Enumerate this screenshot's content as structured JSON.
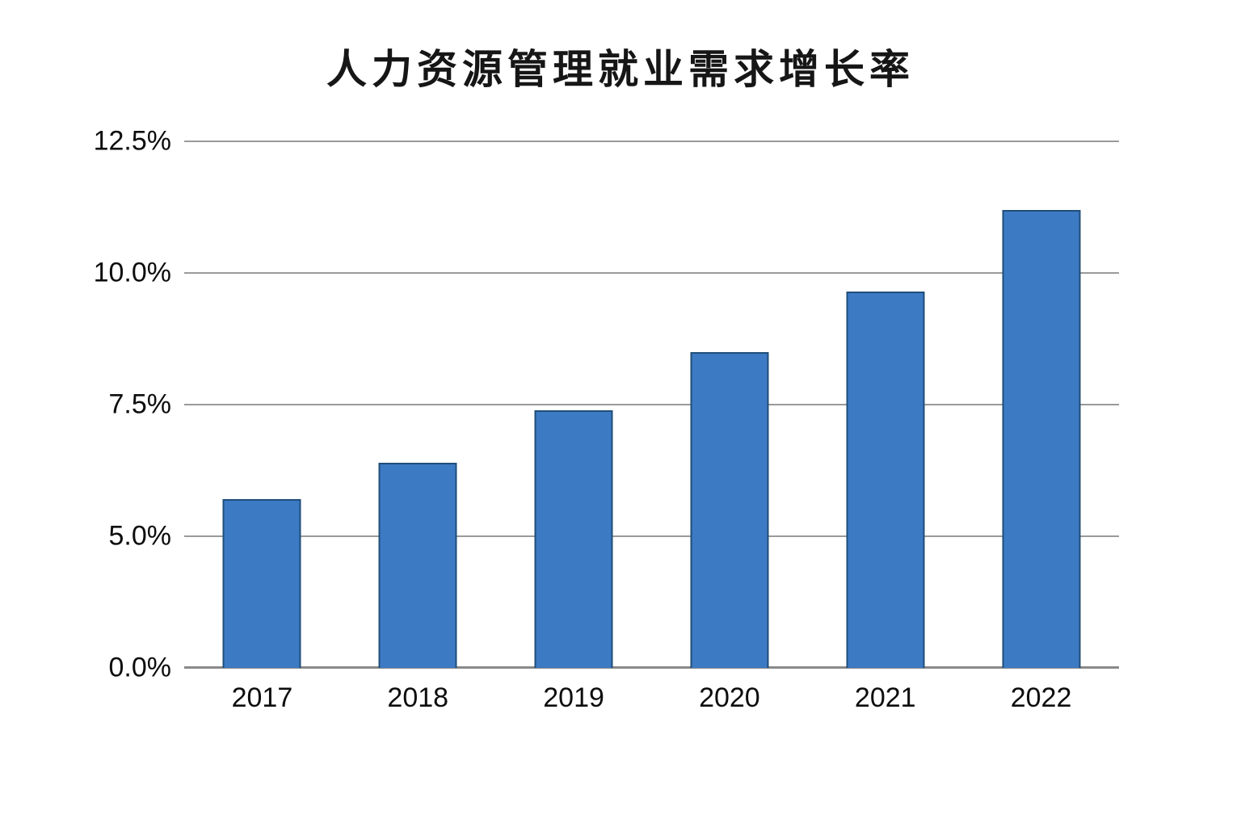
{
  "page": {
    "background": "#ffffff"
  },
  "chart": {
    "title_color": "#161616",
    "label_color": "#0d0d0d",
    "bar_fill": "#3d7ac4",
    "bar_border": "#1f4e79",
    "gridline_color": "#9a9a9a",
    "axis_line_color": "#8a8a8a"
  },
  "chart_data": {
    "type": "bar",
    "title": "人力资源管理就业需求增长率",
    "categories": [
      "2017",
      "2018",
      "2019",
      "2020",
      "2021",
      "2022"
    ],
    "values": [
      5.7,
      6.4,
      7.4,
      8.5,
      9.65,
      11.2
    ],
    "value_unit": "%",
    "xlabel": "",
    "ylabel": "",
    "grid": true,
    "legend": false,
    "y_axis": {
      "tick_labels": [
        "0.0%",
        "5.0%",
        "7.5%",
        "10.0%",
        "12.5%"
      ],
      "tick_values": [
        0,
        5,
        7.5,
        10,
        12.5
      ],
      "note_layout": "ticks equally spaced on screen (non-linear scale)"
    }
  }
}
